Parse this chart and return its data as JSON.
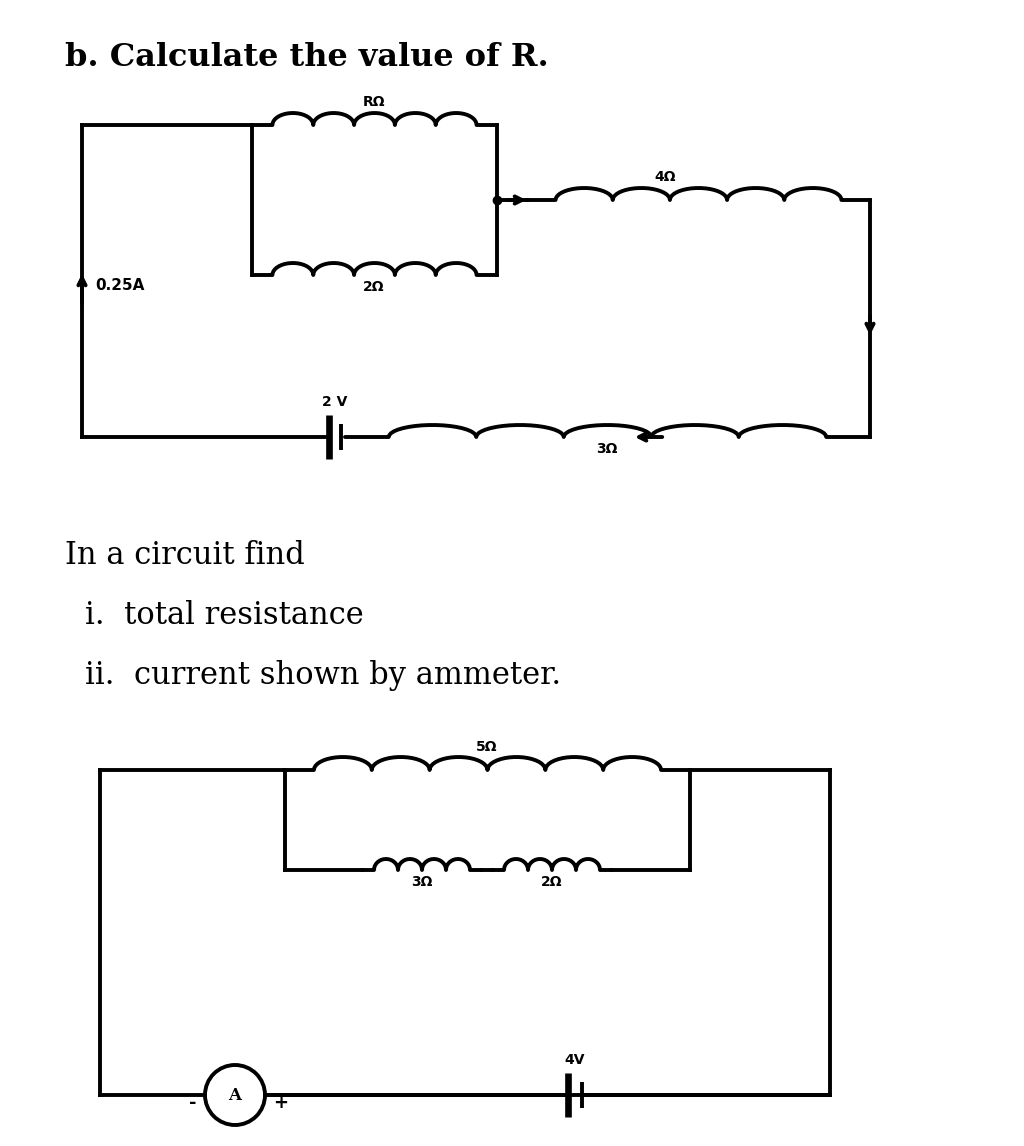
{
  "title_b": "b. Calculate the value of R.",
  "text_circuit_find": "In a circuit find",
  "text_i": "i.  total resistance",
  "text_ii": "ii.  current shown by ammeter.",
  "bg_color": "#ffffff",
  "line_color": "#000000",
  "circuit1": {
    "current_label": "0.25A",
    "r_labels": [
      "RΩ",
      "2Ω",
      "4Ω"
    ],
    "battery_label": "2 V",
    "internal_r_label": "3Ω"
  },
  "circuit2": {
    "r_labels": [
      "5Ω",
      "3Ω",
      "2Ω"
    ],
    "battery_label": "4V",
    "ammeter_label": "A"
  }
}
